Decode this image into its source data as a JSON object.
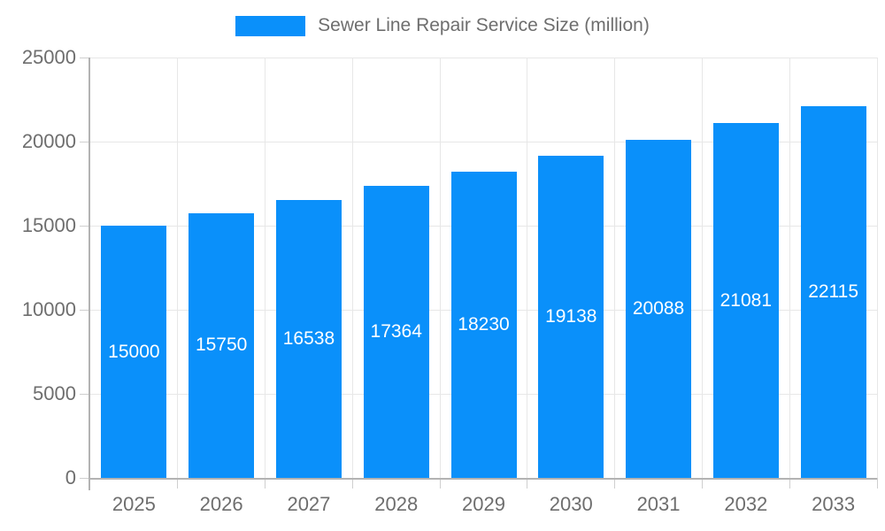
{
  "chart_data": {
    "type": "bar",
    "title": "Sewer Line Repair Service Size (million)",
    "categories": [
      "2025",
      "2026",
      "2027",
      "2028",
      "2029",
      "2030",
      "2031",
      "2032",
      "2033"
    ],
    "values": [
      15000,
      15750,
      16538,
      17364,
      18230,
      19138,
      20088,
      21081,
      22115
    ],
    "xlabel": "",
    "ylabel": "",
    "ylim": [
      0,
      25000
    ],
    "yticks": [
      0,
      5000,
      10000,
      15000,
      20000,
      25000
    ],
    "grid": true,
    "legend_position": "top-center",
    "value_labels": "inside-center",
    "colors": {
      "bar": "#0a90fa",
      "value_label": "#ffffff",
      "axis_text": "#6e6e6e",
      "grid_line": "#e7e7e7",
      "axis_line": "#b3b3b3",
      "tick_mark": "#cfcfcf",
      "background": "#ffffff"
    }
  }
}
